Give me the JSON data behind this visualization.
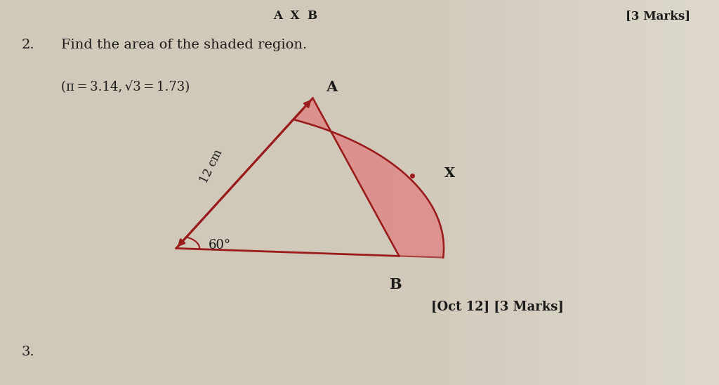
{
  "bg_color": "#b8b0a0",
  "page_color": "#d0c8b8",
  "title_number": "2.",
  "title_text": "Find the area of the shaded region.",
  "subtitle_text": "(π = 3.14, √3 = 1.73)",
  "marks_top": "[3 Marks]",
  "marks_bottom": "[Oct 12] [3 Marks]",
  "angle_label": "60°",
  "length_label": "12 cm",
  "point_A": "A",
  "point_B": "B",
  "point_X": "X",
  "shaded_color": "#e08080",
  "triangle_color": "#9b1c1c",
  "text_color": "#1a1a1a",
  "top_text": "A  X  B"
}
